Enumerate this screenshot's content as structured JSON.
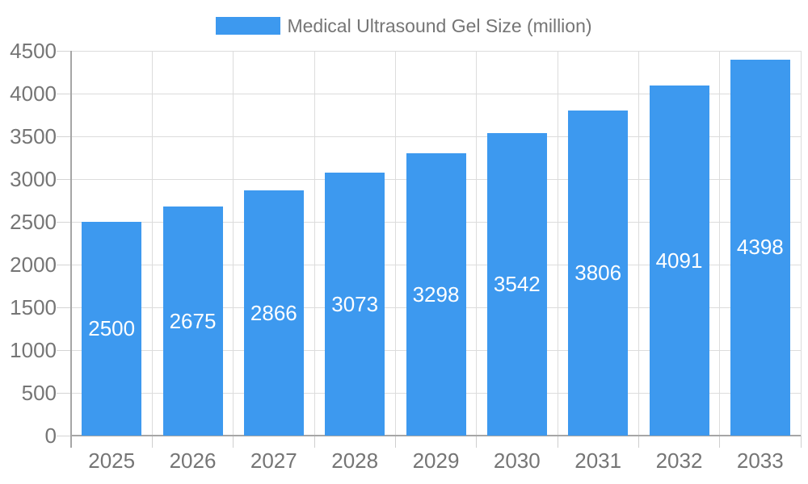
{
  "chart_data": {
    "type": "bar",
    "title": "Medical Ultrasound Gel Size (million)",
    "categories": [
      "2025",
      "2026",
      "2027",
      "2028",
      "2029",
      "2030",
      "2031",
      "2032",
      "2033"
    ],
    "values": [
      2500,
      2675,
      2866,
      3073,
      3298,
      3542,
      3806,
      4091,
      4398
    ],
    "bar_labels": [
      "2500",
      "2675",
      "2866",
      "3073",
      "3298",
      "3542",
      "3806",
      "4091",
      "4398"
    ],
    "xlabel": "",
    "ylabel": "",
    "ylim": [
      0,
      4500
    ],
    "ytick_labels": [
      "0",
      "500",
      "1000",
      "1500",
      "2000",
      "2500",
      "3000",
      "3500",
      "4000",
      "4500"
    ],
    "grid": true,
    "legend_position": "top",
    "colors": {
      "bar": "#3d99ef",
      "bar_label_text": "#ffffff",
      "axis_text": "#757575",
      "gridline": "#dcdcdc",
      "axis_line": "#a6a6a6"
    }
  }
}
